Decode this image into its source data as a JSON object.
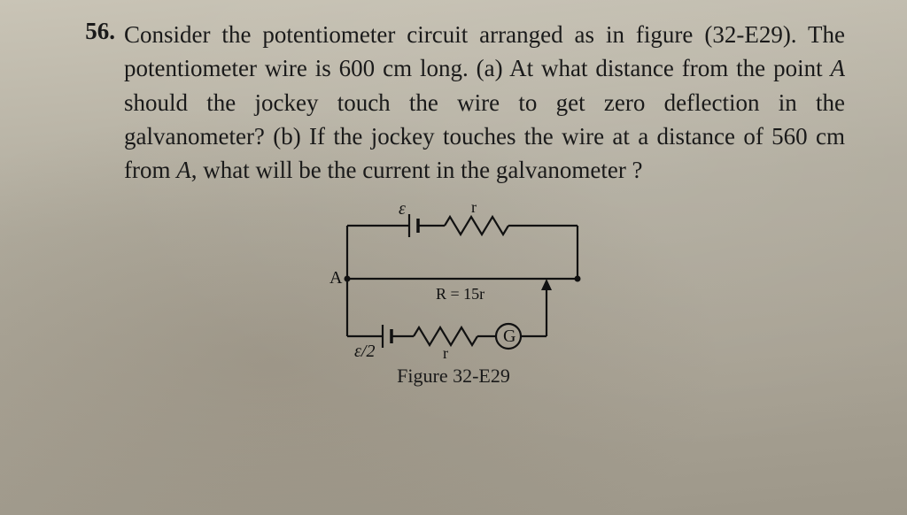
{
  "problem": {
    "number": "56.",
    "body_html": "Consider the potentiometer circuit arranged as in figure (32-E29). The potentiometer wire is 600 cm long. (a) At what distance from the point <em>A</em> should the jockey touch the wire to get zero deflection in the galvanometer? (b) If the jockey touches the wire at a distance of 560 cm from <em>A</em>, what will be the current in the galvanometer ?"
  },
  "figure": {
    "caption": "Figure 32-E29",
    "top_emf_label": "ε",
    "top_res_label": "r",
    "node_A": "A",
    "wire_label": "R = 15r",
    "bottom_emf_label": "ε/2",
    "bottom_res_label": "r",
    "galvanometer_label": "G",
    "colors": {
      "stroke": "#111111",
      "fill_bg": "none"
    },
    "stroke_width": 2.2
  }
}
